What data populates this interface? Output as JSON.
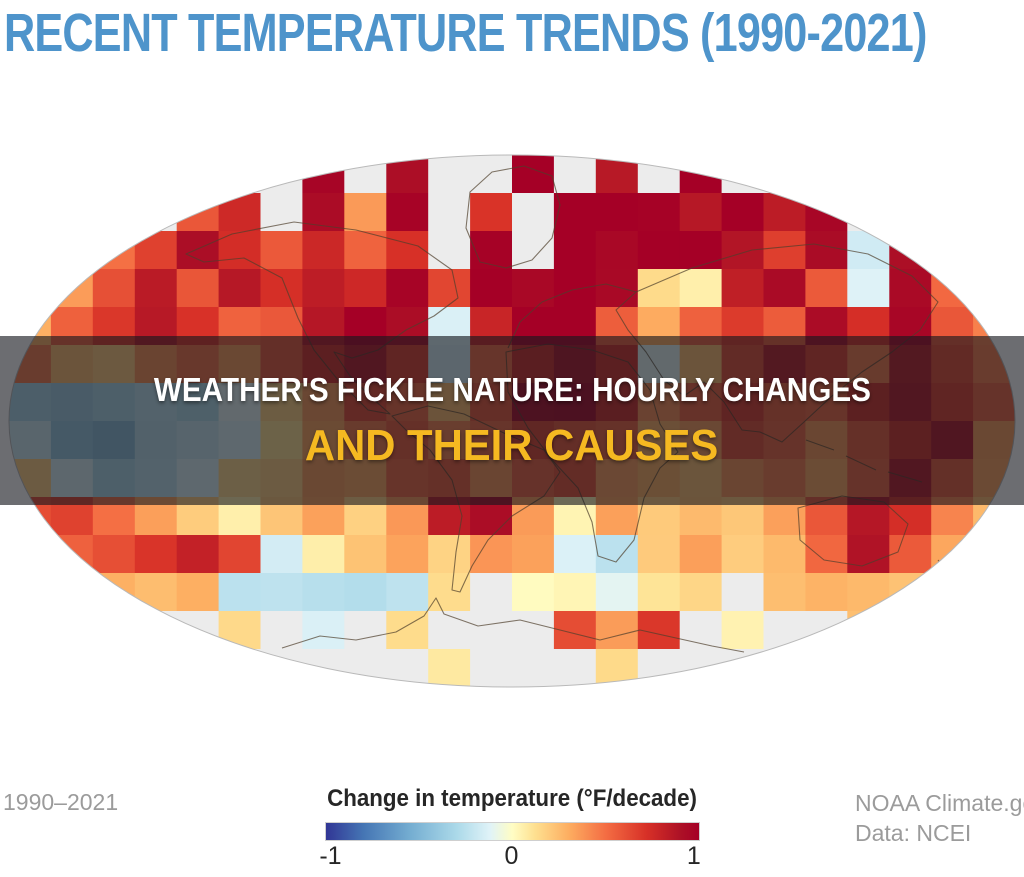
{
  "page_title": "RECENT TEMPERATURE TRENDS (1990-2021)",
  "banner": {
    "line1": "WEATHER'S FICKLE NATURE: HOURLY CHANGES",
    "line2": "AND THEIR CAUSES",
    "overlay_color": "rgba(22,24,30,0.63)",
    "line1_color": "#ffffff",
    "line2_color": "#f5b921"
  },
  "legend": {
    "title": "Change in temperature (°F/decade)",
    "tick_left": "-1",
    "tick_center": "0",
    "tick_right": "1"
  },
  "footer": {
    "period": "1990–2021",
    "credit_line1": "NOAA Climate.gov",
    "credit_line2": "Data: NCEI"
  },
  "colors": {
    "title_blue": "#4e94cb",
    "footer_gray": "#9b9b9b",
    "legend_text": "#262626",
    "no_data": "#ececec",
    "map_edge": "#b9b9b9",
    "coastline": "#4f3f2c"
  },
  "chart_data": {
    "type": "heatmap",
    "subtype": "global-temperature-trend-map",
    "projection": "mollweide-ellipse",
    "title": "RECENT TEMPERATURE TRENDS (1990-2021)",
    "legend_title": "Change in temperature (°F/decade)",
    "period": "1990–2021",
    "source": [
      "NOAA Climate.gov",
      "Data: NCEI"
    ],
    "value_range": [
      -1,
      1
    ],
    "legend_ticks": [
      -1,
      0,
      1
    ],
    "no_data_color": "#ececec",
    "colormap": [
      [
        -1.0,
        "#313695"
      ],
      [
        -0.8,
        "#4575b4"
      ],
      [
        -0.55,
        "#74add1"
      ],
      [
        -0.3,
        "#abd9e9"
      ],
      [
        -0.12,
        "#e0f3f8"
      ],
      [
        0.0,
        "#fffdc4"
      ],
      [
        0.12,
        "#fee090"
      ],
      [
        0.3,
        "#fdae61"
      ],
      [
        0.5,
        "#f46d43"
      ],
      [
        0.72,
        "#d73027"
      ],
      [
        0.9,
        "#ad1126"
      ],
      [
        1.0,
        "#a50026"
      ]
    ],
    "grid_rows": 14,
    "grid_cols": 24,
    "grid_note": "Approximate temperature trend values (°F/decade) read from the map, north (row 0) to south; null = no data (gray)",
    "grid": [
      [
        null,
        null,
        null,
        null,
        null,
        null,
        null,
        1.0,
        null,
        0.9,
        null,
        null,
        1.0,
        null,
        0.9,
        null,
        1.0,
        null,
        null,
        null,
        null,
        null,
        null,
        null
      ],
      [
        null,
        null,
        null,
        null,
        0.6,
        0.8,
        null,
        0.9,
        0.4,
        1.0,
        null,
        0.7,
        null,
        1.0,
        1.0,
        1.0,
        0.9,
        1.0,
        0.8,
        1.0,
        null,
        null,
        null,
        null
      ],
      [
        null,
        null,
        0.5,
        0.7,
        0.9,
        0.7,
        0.6,
        0.8,
        0.5,
        0.7,
        null,
        1.0,
        null,
        1.0,
        1.0,
        1.0,
        1.0,
        0.9,
        0.7,
        0.9,
        -0.2,
        0.95,
        null,
        null
      ],
      [
        null,
        0.4,
        0.6,
        0.8,
        0.6,
        0.9,
        0.7,
        0.8,
        0.8,
        1.0,
        0.6,
        1.0,
        1.0,
        1.0,
        0.9,
        0.15,
        0.1,
        0.8,
        0.9,
        0.6,
        -0.1,
        0.9,
        0.5,
        null
      ],
      [
        0.3,
        0.5,
        0.7,
        0.9,
        0.7,
        0.5,
        0.6,
        0.9,
        1.0,
        0.9,
        -0.1,
        0.8,
        1.0,
        1.0,
        0.6,
        0.3,
        0.5,
        0.7,
        0.6,
        0.9,
        0.7,
        1.0,
        0.6,
        0.4
      ],
      [
        0.45,
        0.3,
        0.2,
        0.35,
        0.5,
        0.4,
        0.55,
        0.7,
        0.9,
        0.7,
        -0.2,
        0.5,
        0.8,
        0.9,
        0.7,
        -0.1,
        0.3,
        0.6,
        0.8,
        0.7,
        0.5,
        0.8,
        0.6,
        0.5
      ],
      [
        -0.3,
        -0.4,
        -0.3,
        -0.2,
        -0.3,
        -0.15,
        0.2,
        0.4,
        0.6,
        0.5,
        0.3,
        0.6,
        0.9,
        0.95,
        0.8,
        0.4,
        0.5,
        0.7,
        0.6,
        0.5,
        0.7,
        0.9,
        0.7,
        0.5
      ],
      [
        -0.2,
        -0.35,
        -0.45,
        -0.3,
        -0.2,
        -0.1,
        0.1,
        0.3,
        0.5,
        0.6,
        0.4,
        0.5,
        0.7,
        0.6,
        0.5,
        0.3,
        0.4,
        0.6,
        0.5,
        0.4,
        0.6,
        0.7,
        0.85,
        0.4
      ],
      [
        0.2,
        -0.2,
        -0.3,
        -0.2,
        -0.15,
        0.1,
        0.2,
        0.4,
        0.3,
        0.5,
        0.6,
        0.4,
        0.5,
        0.6,
        0.4,
        0.3,
        0.2,
        0.4,
        0.5,
        0.3,
        0.5,
        0.9,
        0.6,
        0.3
      ],
      [
        0.6,
        0.7,
        0.5,
        0.3,
        0.2,
        0.1,
        0.2,
        0.3,
        0.2,
        0.4,
        0.8,
        0.9,
        0.4,
        0.05,
        0.3,
        0.2,
        0.3,
        0.2,
        0.3,
        0.6,
        0.9,
        0.7,
        0.4,
        0.3
      ],
      [
        0.4,
        0.5,
        0.6,
        0.75,
        0.8,
        0.6,
        -0.15,
        0.1,
        0.2,
        0.3,
        0.2,
        0.4,
        0.3,
        -0.15,
        -0.2,
        0.2,
        0.3,
        0.2,
        0.3,
        0.5,
        0.85,
        0.6,
        0.35,
        0.3
      ],
      [
        null,
        null,
        0.3,
        0.2,
        0.3,
        -0.2,
        -0.25,
        -0.3,
        -0.25,
        -0.2,
        0.1,
        null,
        0.05,
        0.05,
        -0.15,
        0.1,
        0.2,
        null,
        0.2,
        0.3,
        0.3,
        0.2,
        null,
        null
      ],
      [
        null,
        null,
        null,
        null,
        null,
        0.1,
        null,
        -0.1,
        null,
        0.1,
        null,
        null,
        null,
        0.6,
        0.4,
        0.7,
        null,
        0.05,
        null,
        null,
        0.2,
        null,
        null,
        null
      ],
      [
        null,
        null,
        null,
        null,
        null,
        null,
        null,
        null,
        null,
        null,
        0.05,
        null,
        null,
        null,
        0.1,
        null,
        null,
        null,
        null,
        null,
        null,
        null,
        null,
        null
      ]
    ]
  }
}
